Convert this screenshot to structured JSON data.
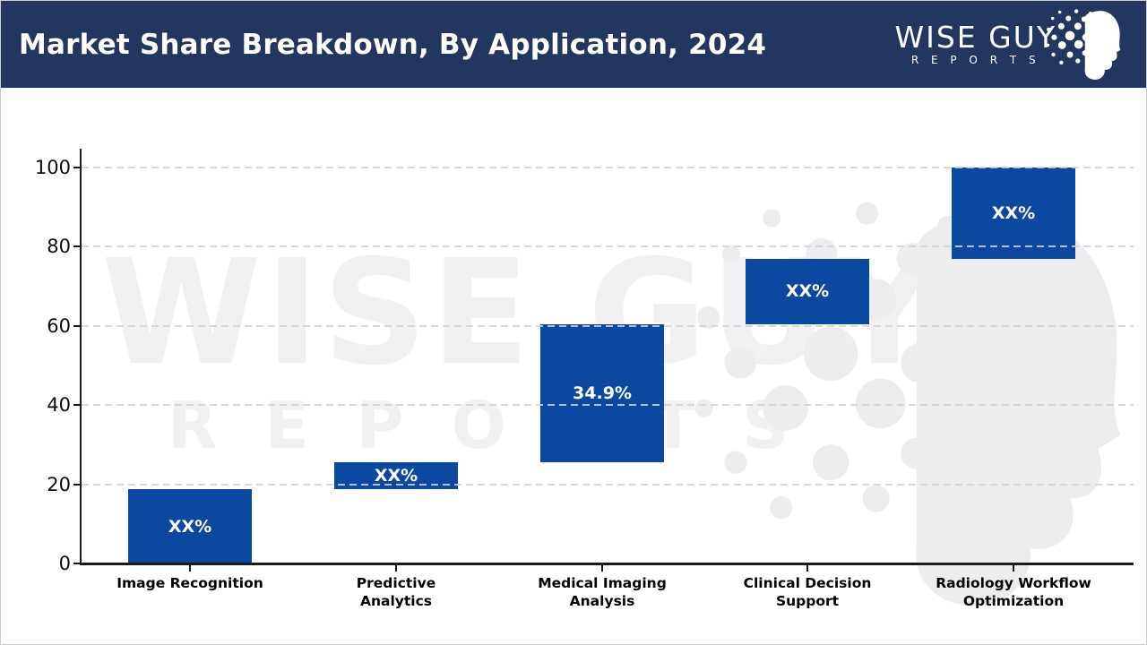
{
  "header": {
    "title": "Market Share Breakdown, By Application, 2024",
    "logo": {
      "name": "WISE GUY",
      "tagline": "R E P O R T S"
    }
  },
  "watermark": {
    "big_text": "WISE GUY",
    "small_text": "R E P O R T S"
  },
  "colors": {
    "header_bg": "#22375f",
    "bar": "#0b49a1",
    "bar_label": "#ffffff",
    "gridline": "#d2d2d4",
    "axis": "#1a1a1a",
    "watermark": "#f1f1f4",
    "watermark_face": "#ededf0"
  },
  "chart_data": {
    "type": "bar",
    "variant": "waterfall",
    "title": "Market Share Breakdown, By Application, 2024",
    "categories": [
      "Image Recognition",
      "Predictive Analytics",
      "Medical Imaging Analysis",
      "Clinical Decision Support",
      "Radiology Workflow Optimization"
    ],
    "category_lines": [
      [
        "Image Recognition"
      ],
      [
        "Predictive",
        "Analytics"
      ],
      [
        "Medical Imaging",
        "Analysis"
      ],
      [
        "Clinical Decision",
        "Support"
      ],
      [
        "Radiology Workflow",
        "Optimization"
      ]
    ],
    "segments": [
      {
        "category": "Image Recognition",
        "label": "XX%",
        "start": 0,
        "end": 18.7
      },
      {
        "category": "Predictive Analytics",
        "label": "XX%",
        "start": 18.7,
        "end": 25.6
      },
      {
        "category": "Medical Imaging Analysis",
        "label": "34.9%",
        "start": 25.6,
        "end": 60.5
      },
      {
        "category": "Clinical Decision Support",
        "label": "XX%",
        "start": 60.5,
        "end": 77.0
      },
      {
        "category": "Radiology Workflow Optimization",
        "label": "XX%",
        "start": 77.0,
        "end": 100
      }
    ],
    "xlabel": "",
    "ylabel": "",
    "ylim": [
      0,
      100
    ],
    "yticks": [
      0,
      20,
      40,
      60,
      80,
      100
    ],
    "grid": "horizontal-dashed",
    "legend": "none"
  }
}
